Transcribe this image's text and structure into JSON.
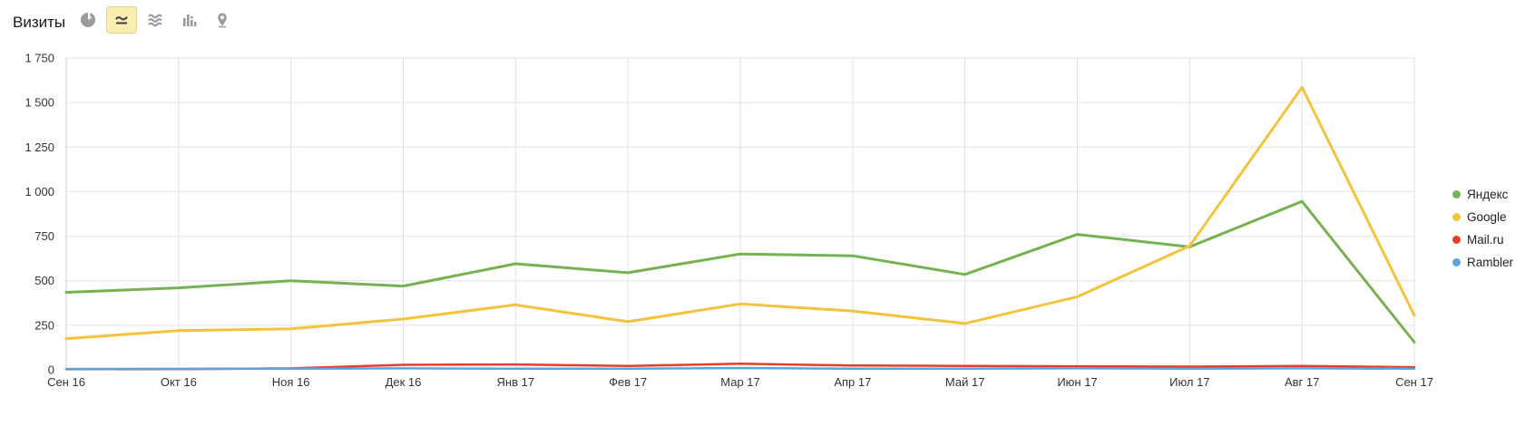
{
  "header": {
    "title": "Визиты"
  },
  "toolbar": {
    "icon_color": "#9b9b9b",
    "selected_icon_color": "#3f3f3f",
    "selected_bg": "#fcedb0",
    "selected_border": "#e8cf88",
    "items": [
      {
        "icon": "pie-chart-icon",
        "name": "chart-type-pie",
        "selected": false
      },
      {
        "icon": "line-chart-icon",
        "name": "chart-type-line",
        "selected": true
      },
      {
        "icon": "stacked-area-chart-icon",
        "name": "chart-type-stacked-area",
        "selected": false
      },
      {
        "icon": "bar-chart-icon",
        "name": "chart-type-columns",
        "selected": false
      },
      {
        "icon": "map-pin-icon",
        "name": "chart-type-map",
        "selected": false
      }
    ]
  },
  "chart_data": {
    "type": "line",
    "title": "Визиты",
    "categories": [
      "Сен 16",
      "Окт 16",
      "Ноя 16",
      "Дек 16",
      "Янв 17",
      "Фев 17",
      "Мар 17",
      "Апр 17",
      "Май 17",
      "Июн 17",
      "Июл 17",
      "Авг 17",
      "Сен 17"
    ],
    "series": [
      {
        "name": "Яндекс",
        "slug": "yandex",
        "color": "#76b152",
        "values": [
          435,
          460,
          500,
          470,
          595,
          545,
          650,
          640,
          535,
          760,
          690,
          945,
          155
        ]
      },
      {
        "name": "Google",
        "slug": "google",
        "color": "#f4c33d",
        "values": [
          175,
          220,
          230,
          285,
          365,
          270,
          370,
          330,
          260,
          410,
          695,
          1585,
          305
        ]
      },
      {
        "name": "Mail.ru",
        "slug": "mailru",
        "color": "#e83d28",
        "values": [
          3,
          4,
          8,
          28,
          30,
          22,
          34,
          24,
          22,
          20,
          18,
          22,
          15
        ]
      },
      {
        "name": "Rambler",
        "slug": "rambler",
        "color": "#58a5e2",
        "values": [
          4,
          5,
          6,
          8,
          6,
          6,
          10,
          6,
          6,
          8,
          6,
          8,
          6
        ]
      }
    ],
    "ylim": [
      0,
      1750
    ],
    "ytick_interval": 250,
    "ytick_labels": [
      "0",
      "250",
      "500",
      "750",
      "1 000",
      "1 250",
      "1 500",
      "1 750"
    ],
    "grid": true,
    "legend_position": "right",
    "grid_color": "#e2e2e2",
    "axis_line_color": "#b3b3b3",
    "axis_label_color": "#333333"
  }
}
